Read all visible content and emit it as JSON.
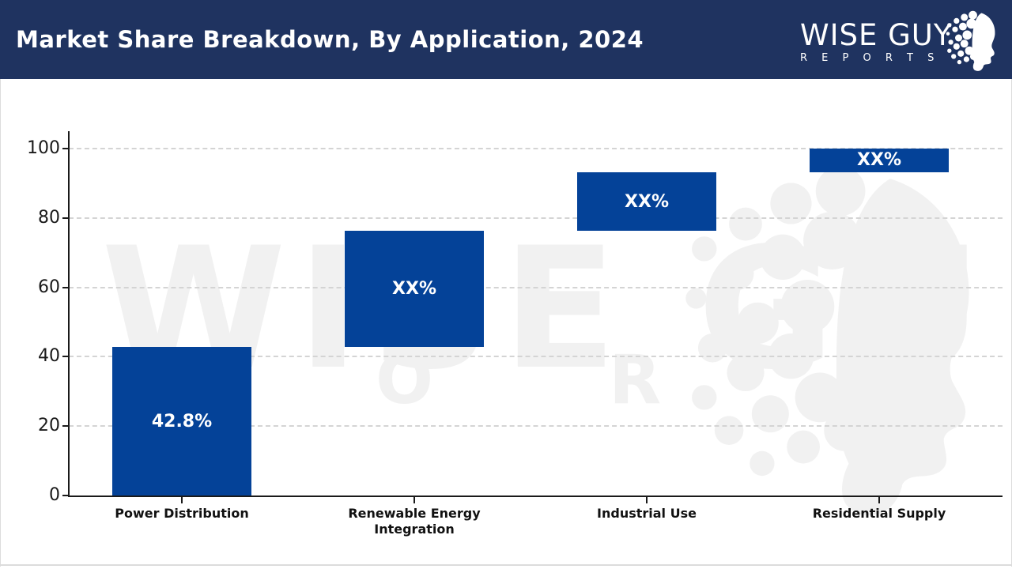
{
  "header": {
    "title": "Market Share Breakdown, By Application, 2024",
    "logo": {
      "wordmark": "WISE GUY",
      "subtext": "R E P O R T S"
    }
  },
  "watermark": {
    "wordmark": "WISE GU",
    "subtext": "P O R T S"
  },
  "chart_data": {
    "type": "bar",
    "subtype": "waterfall",
    "title": "Market Share Breakdown, By Application, 2024",
    "categories": [
      "Power Distribution",
      "Renewable Energy Integration",
      "Industrial Use",
      "Residential Supply"
    ],
    "segments": [
      {
        "category": "Power Distribution",
        "start": 0,
        "end": 42.8,
        "value": 42.8,
        "label": "42.8%"
      },
      {
        "category": "Renewable Energy Integration",
        "start": 42.8,
        "end": 76.2,
        "value": 33.4,
        "label": "XX%"
      },
      {
        "category": "Industrial Use",
        "start": 76.2,
        "end": 93.2,
        "value": 17.0,
        "label": "XX%"
      },
      {
        "category": "Residential Supply",
        "start": 93.2,
        "end": 100,
        "value": 6.8,
        "label": "XX%"
      }
    ],
    "yticks": [
      0,
      20,
      40,
      60,
      80,
      100
    ],
    "ylim": [
      0,
      105
    ],
    "xlabel": "",
    "ylabel": "",
    "grid": "horizontal-dashed",
    "legend": "none",
    "bar_color": "#044298",
    "bar_label_color": "#ffffff"
  },
  "colors": {
    "header_bg": "#1F3360",
    "bar": "#044298",
    "grid": "#d4d4d4",
    "axis": "#1a1a1a",
    "watermark": "#f1f1f1",
    "border": "#dcdcdc"
  }
}
